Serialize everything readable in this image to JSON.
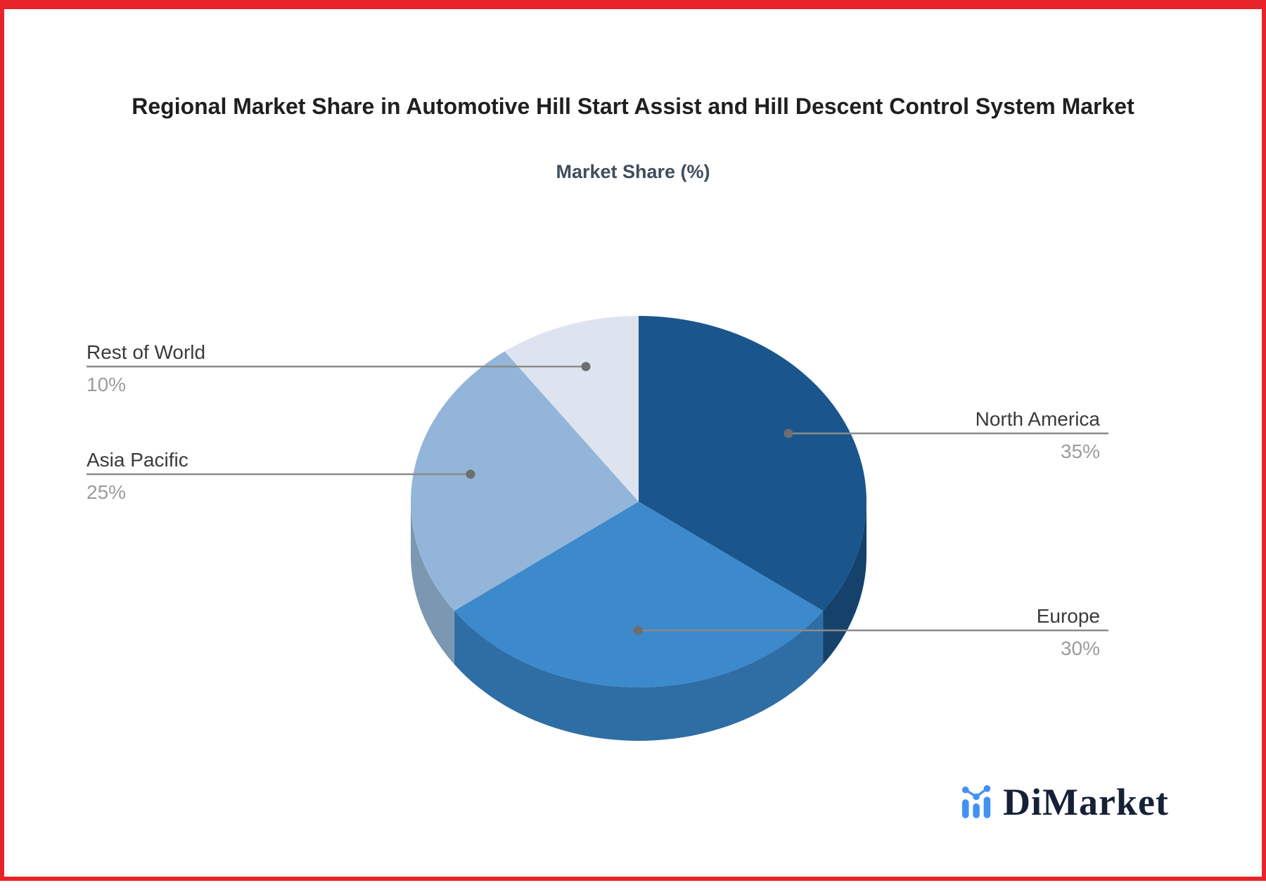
{
  "page": {
    "border_color": "#e9232a",
    "background": "#ffffff"
  },
  "header": {
    "title": "Regional Market Share in Automotive Hill Start Assist and Hill Descent Control System Market",
    "subtitle": "Market Share (%)"
  },
  "chart_data": {
    "type": "pie",
    "style": "3d",
    "title": "Regional Market Share in Automotive Hill Start Assist and Hill Descent Control System Market",
    "subtitle": "Market Share (%)",
    "unit": "%",
    "start_angle_deg": 0,
    "direction": "clockwise",
    "slices": [
      {
        "label": "North America",
        "value": 35,
        "pct_text": "35%",
        "color": "#1a568c",
        "side_color": "#14426b"
      },
      {
        "label": "Europe",
        "value": 30,
        "pct_text": "30%",
        "color": "#3c89cc",
        "side_color": "#2f6ea5"
      },
      {
        "label": "Asia Pacific",
        "value": 25,
        "pct_text": "25%",
        "color": "#93b5d9",
        "side_color": "#7b97b2"
      },
      {
        "label": "Rest of World",
        "value": 10,
        "pct_text": "10%",
        "color": "#dee4ef",
        "side_color": "#c3cbd9"
      }
    ],
    "label_color": "#3a3a3a",
    "pct_color": "#9b9c9e",
    "connector_color": "#8a8a8a",
    "connector_dot_color": "#6d6e70",
    "legend_position": "none"
  },
  "logo": {
    "brand": "DiMarket",
    "icon": "bar-chart-icon",
    "text_color": "#162138",
    "icon_color": "#4292f4"
  }
}
